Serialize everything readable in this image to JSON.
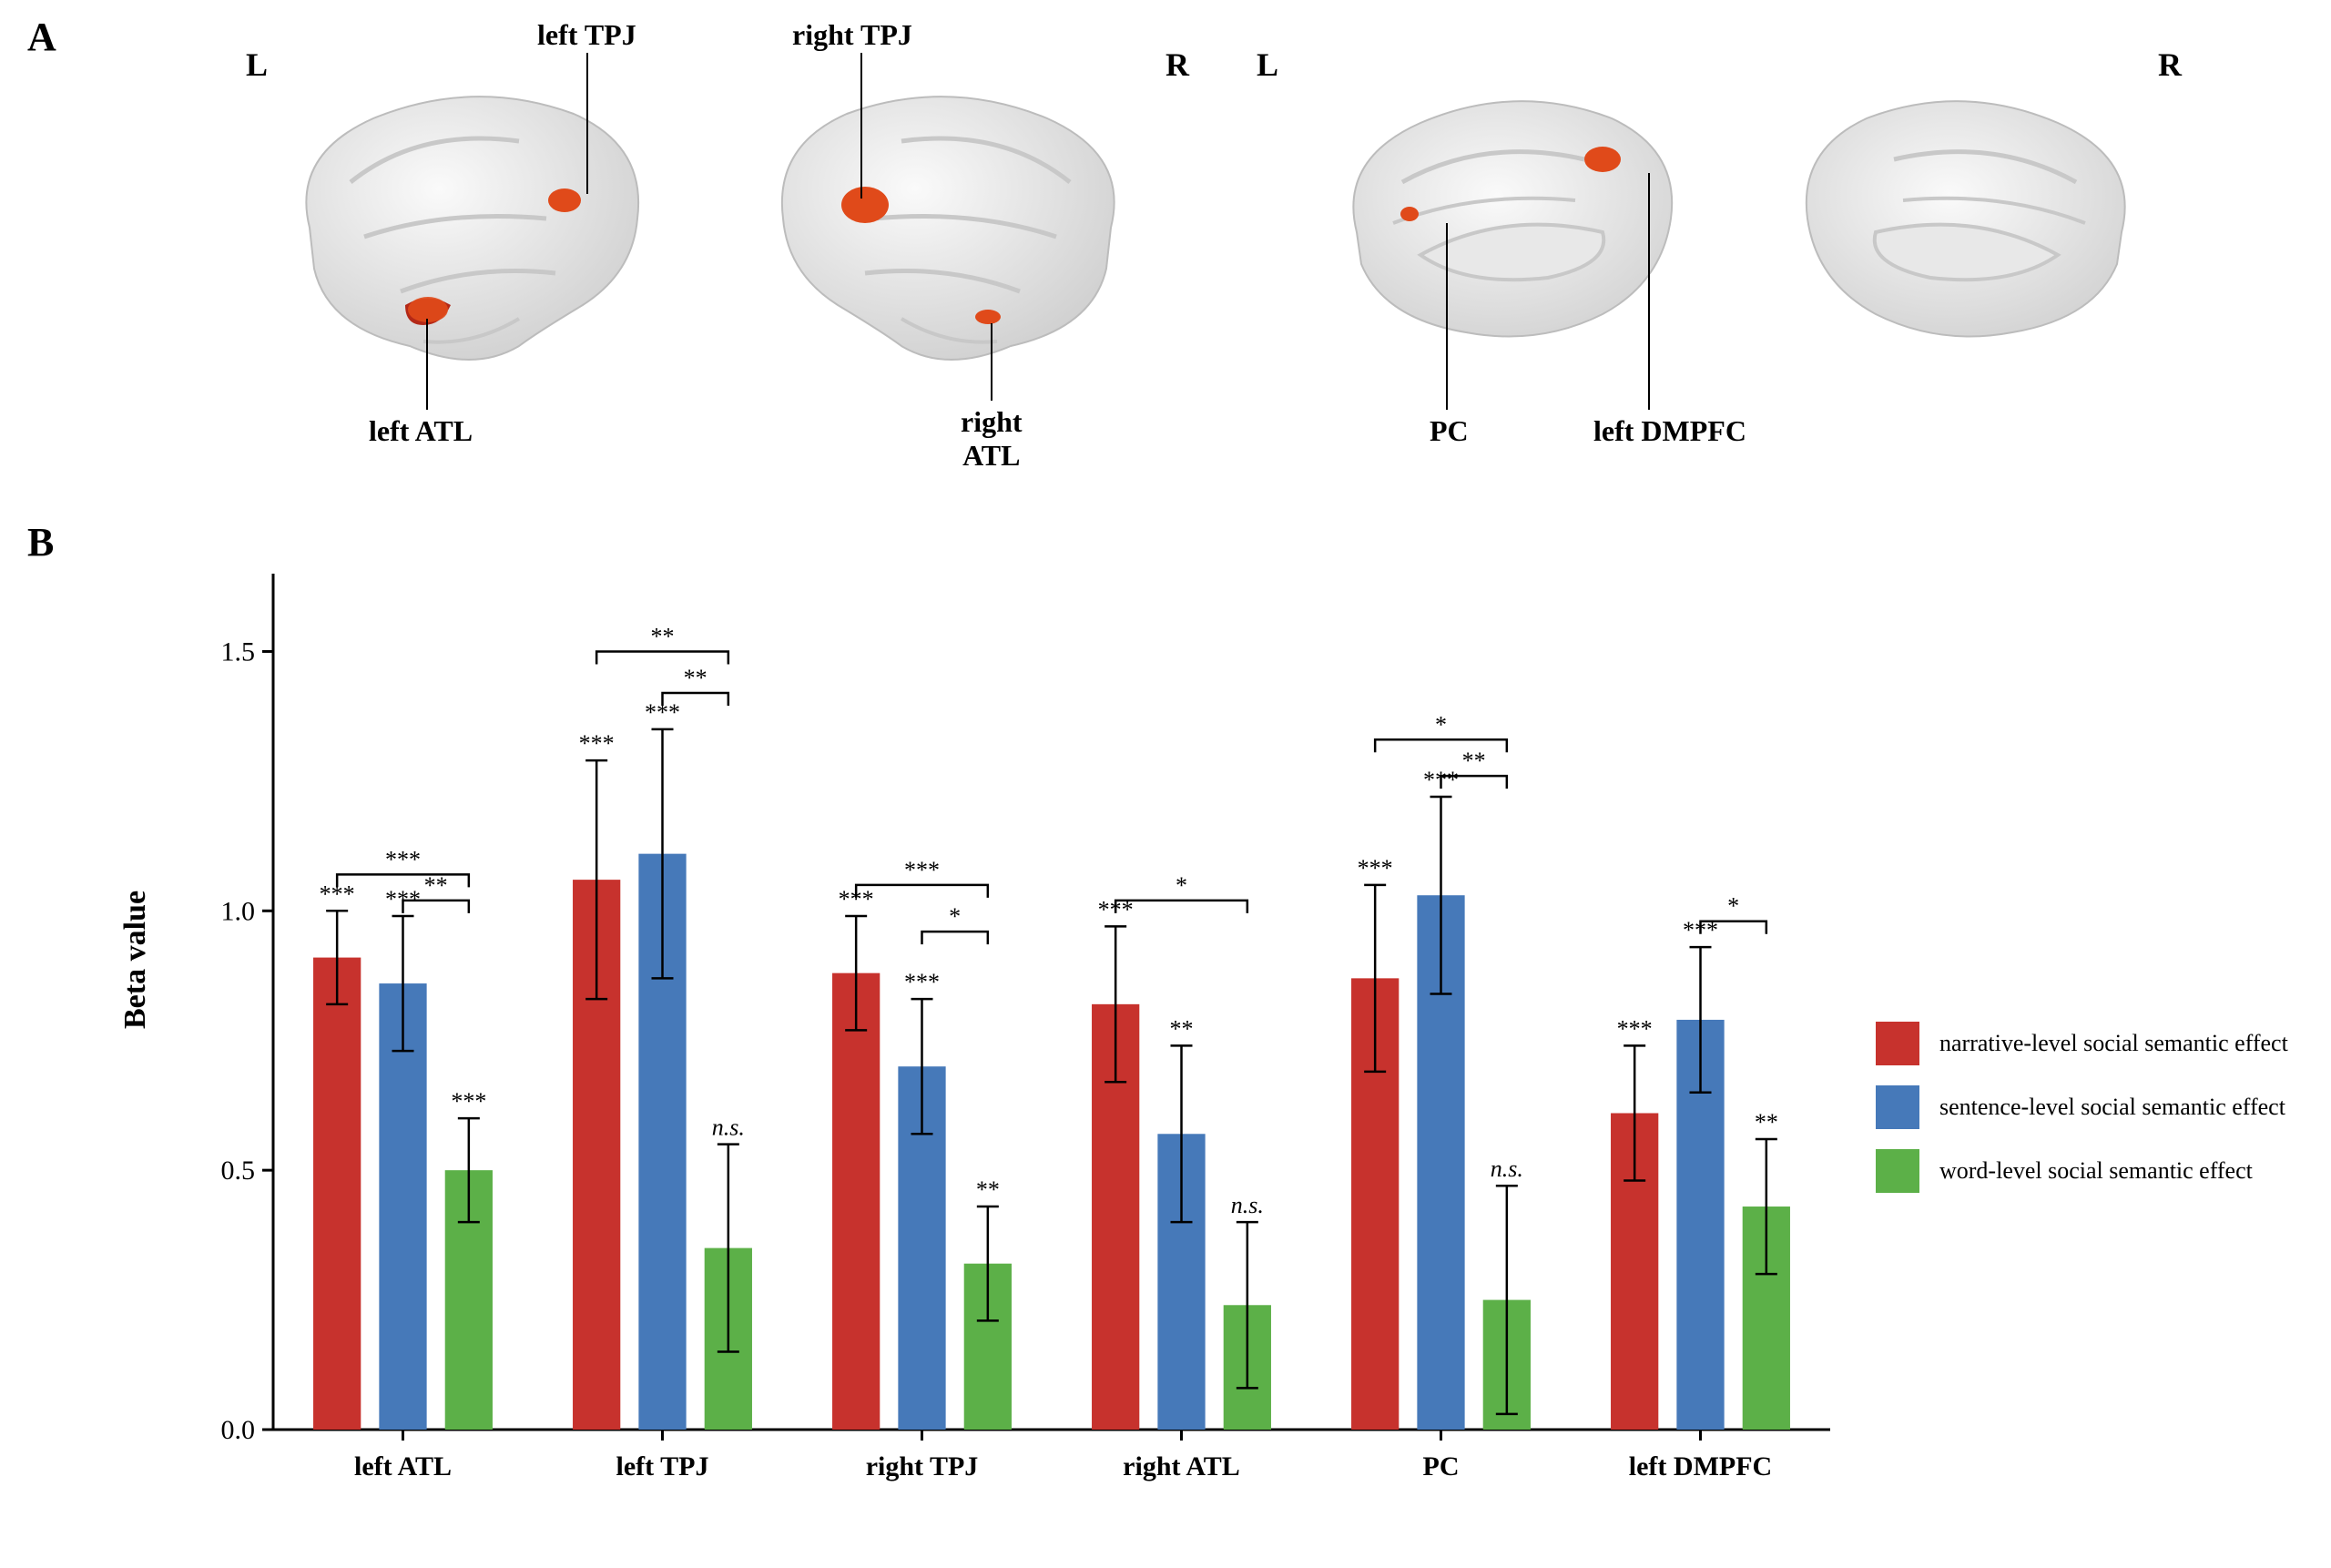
{
  "panel_letters": {
    "A": "A",
    "B": "B"
  },
  "lr": {
    "L": "L",
    "R": "R"
  },
  "brain_annotations": {
    "left_tpj": "left TPJ",
    "right_tpj": "right TPJ",
    "left_atl": "left ATL",
    "right_atl": "right\nATL",
    "pc": "PC",
    "left_dmpfc": "left DMPFC"
  },
  "legend": {
    "items": [
      {
        "label": "narrative-level social semantic effect",
        "color": "#c7322d"
      },
      {
        "label": "sentence-level social semantic effect",
        "color": "#4679b9"
      },
      {
        "label": "word-level social semantic effect",
        "color": "#5cb048"
      }
    ]
  },
  "chart": {
    "type": "bar",
    "ylabel": "Beta value",
    "ylim": [
      0.0,
      1.65
    ],
    "yticks": [
      0.0,
      0.5,
      1.0,
      1.5
    ],
    "ytick_labels": [
      "0.0",
      "0.5",
      "1.0",
      "1.5"
    ],
    "bar_colors": [
      "#c7322d",
      "#4679b9",
      "#5cb048"
    ],
    "bar_width": 0.78,
    "axis_color": "#000000",
    "tick_color": "#000000",
    "background_color": "#ffffff",
    "label_fontsize": 30,
    "tick_fontsize": 30,
    "axis_title_fontsize": 34,
    "error_linewidth": 2.5,
    "categories": [
      "left ATL",
      "left TPJ",
      "right TPJ",
      "right ATL",
      "PC",
      "left DMPFC"
    ],
    "groups": [
      {
        "id": "left_atl",
        "label": "left ATL",
        "bars": [
          {
            "value": 0.91,
            "err": 0.09,
            "sig": "***"
          },
          {
            "value": 0.86,
            "err": 0.13,
            "sig": "***"
          },
          {
            "value": 0.5,
            "err": 0.1,
            "sig": "***"
          }
        ],
        "brackets": [
          {
            "from": 0,
            "to": 2,
            "y": 1.07,
            "label": "***"
          },
          {
            "from": 1,
            "to": 2,
            "y": 1.02,
            "label": "**"
          }
        ]
      },
      {
        "id": "left_tpj",
        "label": "left TPJ",
        "bars": [
          {
            "value": 1.06,
            "err": 0.23,
            "sig": "***"
          },
          {
            "value": 1.11,
            "err": 0.24,
            "sig": "***"
          },
          {
            "value": 0.35,
            "err": 0.2,
            "sig": "n.s.",
            "italic": true
          }
        ],
        "brackets": [
          {
            "from": 0,
            "to": 2,
            "y": 1.5,
            "label": "**"
          },
          {
            "from": 1,
            "to": 2,
            "y": 1.42,
            "label": "**"
          }
        ]
      },
      {
        "id": "right_tpj",
        "label": "right TPJ",
        "bars": [
          {
            "value": 0.88,
            "err": 0.11,
            "sig": "***"
          },
          {
            "value": 0.7,
            "err": 0.13,
            "sig": "***"
          },
          {
            "value": 0.32,
            "err": 0.11,
            "sig": "**"
          }
        ],
        "brackets": [
          {
            "from": 0,
            "to": 2,
            "y": 1.05,
            "label": "***"
          },
          {
            "from": 1,
            "to": 2,
            "y": 0.96,
            "label": "*"
          }
        ]
      },
      {
        "id": "right_atl",
        "label": "right ATL",
        "bars": [
          {
            "value": 0.82,
            "err": 0.15,
            "sig": "***"
          },
          {
            "value": 0.57,
            "err": 0.17,
            "sig": "**"
          },
          {
            "value": 0.24,
            "err": 0.16,
            "sig": "n.s.",
            "italic": true
          }
        ],
        "brackets": [
          {
            "from": 0,
            "to": 2,
            "y": 1.02,
            "label": "*"
          }
        ]
      },
      {
        "id": "pc",
        "label": "PC",
        "bars": [
          {
            "value": 0.87,
            "err": 0.18,
            "sig": "***"
          },
          {
            "value": 1.03,
            "err": 0.19,
            "sig": "***"
          },
          {
            "value": 0.25,
            "err": 0.22,
            "sig": "n.s.",
            "italic": true
          }
        ],
        "brackets": [
          {
            "from": 0,
            "to": 2,
            "y": 1.33,
            "label": "*"
          },
          {
            "from": 1,
            "to": 2,
            "y": 1.26,
            "label": "**"
          }
        ]
      },
      {
        "id": "left_dmpfc",
        "label": "left DMPFC",
        "bars": [
          {
            "value": 0.61,
            "err": 0.13,
            "sig": "***"
          },
          {
            "value": 0.79,
            "err": 0.14,
            "sig": "***"
          },
          {
            "value": 0.43,
            "err": 0.13,
            "sig": "**"
          }
        ],
        "brackets": [
          {
            "from": 1,
            "to": 2,
            "y": 0.98,
            "label": "*"
          }
        ]
      }
    ]
  },
  "brain_fill": "#e8e8e8",
  "brain_stroke": "#bfbfbf",
  "activation_color": "#e04a1a"
}
